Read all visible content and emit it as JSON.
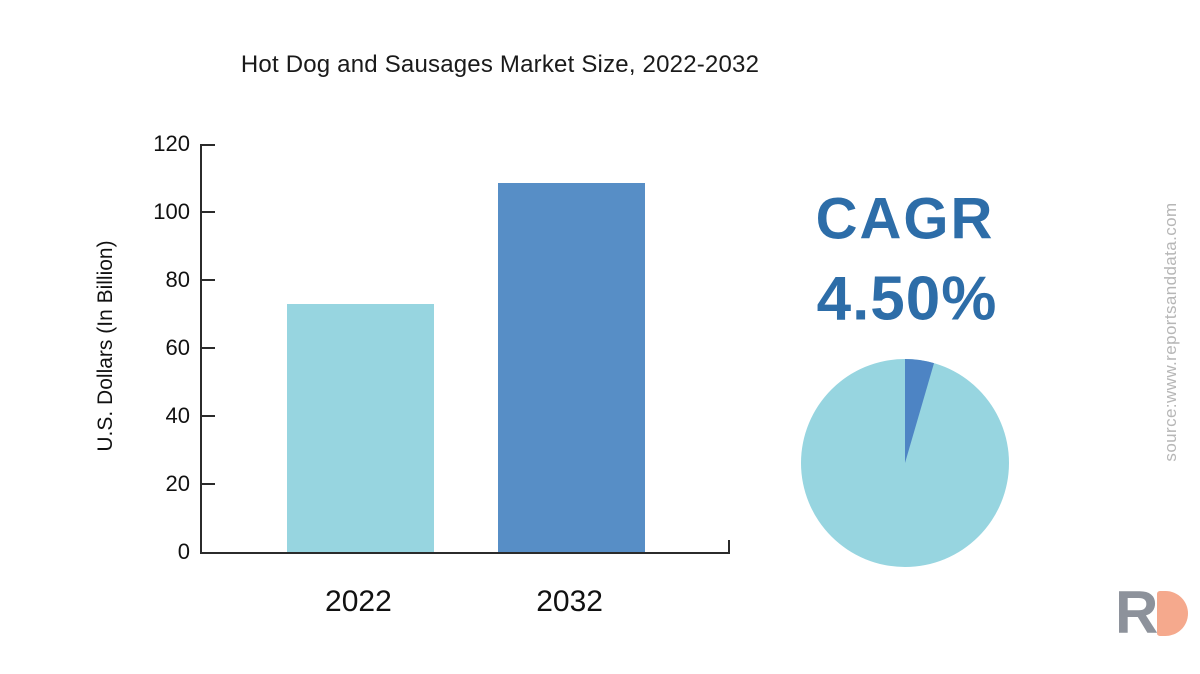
{
  "title": "Hot Dog and Sausages Market Size, 2022-2032",
  "chart_data": {
    "type": "bar",
    "categories": [
      "2022",
      "2032"
    ],
    "values": [
      73,
      108.5
    ],
    "title": "Hot Dog and Sausages Market Size, 2022-2032",
    "xlabel": "",
    "ylabel": "U.S. Dollars (In Billion)",
    "ylim": [
      0,
      120
    ],
    "ytick_step": 20,
    "bar_colors": [
      "#97d5e0",
      "#578ec6"
    ],
    "grid": false,
    "legend": false
  },
  "cagr": {
    "label": "CAGR",
    "value": "4.50%",
    "percent": 4.5,
    "color": "#2d6da8"
  },
  "pie": {
    "type": "pie",
    "slices": [
      {
        "name": "remainder",
        "percent": 95.5,
        "color": "#97d5e0"
      },
      {
        "name": "cagr-slice",
        "percent": 4.5,
        "color": "#4d84c4"
      }
    ]
  },
  "source": {
    "text": "source:www.reportsanddata.com",
    "color": "#b6b6b6"
  },
  "logo": {
    "letter_r": "R",
    "r_color": "#8d929b",
    "d_color": "#f5a98d"
  },
  "colors": {
    "axis": "#2b2b2b",
    "background": "#ffffff"
  }
}
